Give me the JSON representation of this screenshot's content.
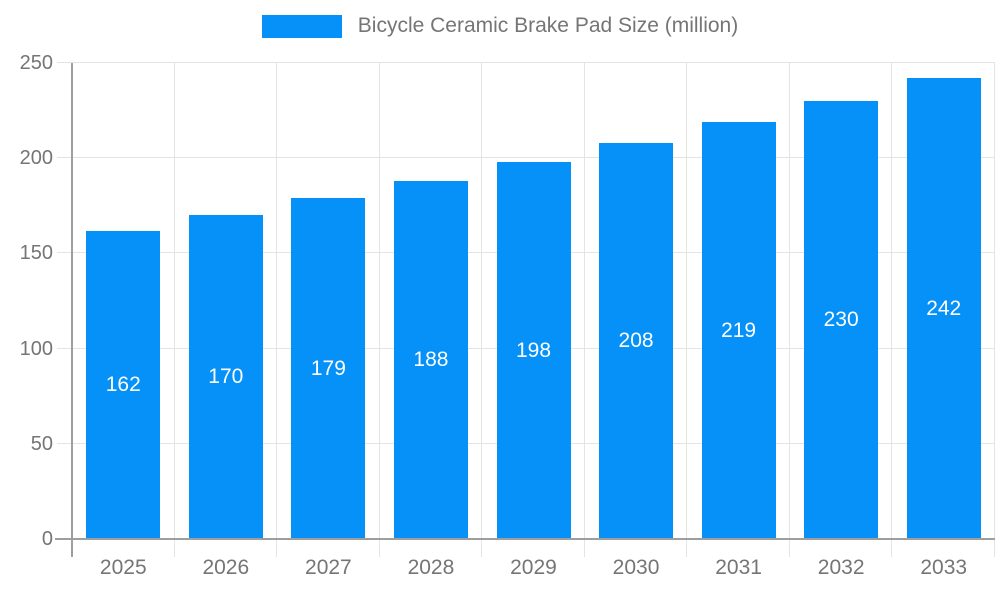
{
  "legend": {
    "label": "Bicycle Ceramic Brake Pad Size (million)"
  },
  "chart_data": {
    "type": "bar",
    "title": "Bicycle Ceramic Brake Pad Size (million)",
    "series_name": "Bicycle Ceramic Brake Pad Size (million)",
    "categories": [
      "2025",
      "2026",
      "2027",
      "2028",
      "2029",
      "2030",
      "2031",
      "2032",
      "2033"
    ],
    "values": [
      162,
      170,
      179,
      188,
      198,
      208,
      219,
      230,
      242
    ],
    "xlabel": "",
    "ylabel": "",
    "ylim": [
      0,
      250
    ],
    "yticks": [
      0,
      50,
      100,
      150,
      200,
      250
    ],
    "grid": true,
    "value_labels": "inside-center",
    "legend_position": "top-center",
    "colors": {
      "bar": "#0691f8",
      "grid": "#e4e4e4",
      "axis": "#9e9e9e",
      "tick_text": "#757575",
      "value_label": "#ffffff",
      "background": "#ffffff"
    }
  }
}
